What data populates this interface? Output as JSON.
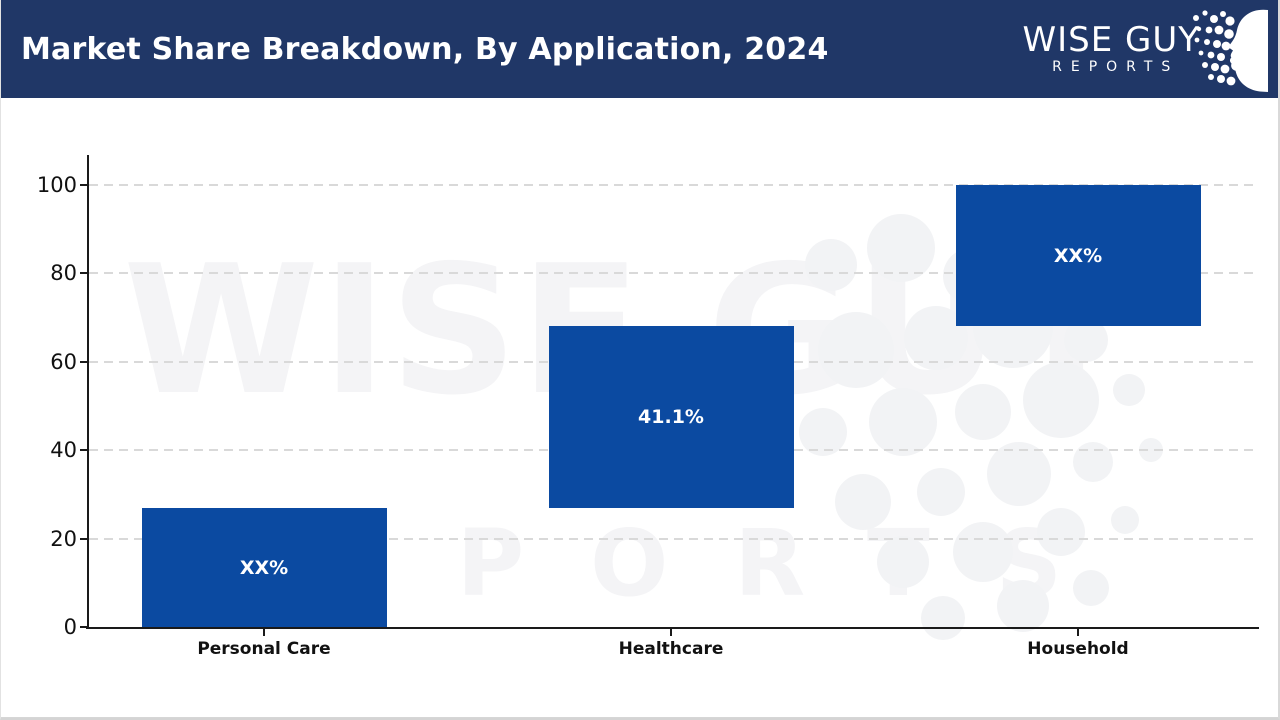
{
  "header": {
    "title": "Market Share Breakdown, By Application, 2024",
    "logo": {
      "line1": "WISE GUY",
      "line2": "REPORTS"
    }
  },
  "watermark": {
    "line1": "WISE GUY",
    "line2": "REPORTS"
  },
  "chart_data": {
    "type": "bar",
    "subtype": "floating-segment-bars (waterfall-style market share breakdown)",
    "title": "Market Share Breakdown, By Application, 2024",
    "categories": [
      "Personal Care",
      "Healthcare",
      "Household"
    ],
    "bars": [
      {
        "category": "Personal Care",
        "from": 0,
        "to": 26.9,
        "value": 26.9,
        "label": "XX%"
      },
      {
        "category": "Healthcare",
        "from": 26.9,
        "to": 68.0,
        "value": 41.1,
        "label": "41.1%"
      },
      {
        "category": "Household",
        "from": 68.0,
        "to": 100,
        "value": 32.0,
        "label": "XX%"
      }
    ],
    "yticks": [
      0,
      20,
      40,
      60,
      80,
      100
    ],
    "ylim": [
      0,
      107
    ],
    "xlabel": "",
    "ylabel": "",
    "grid": "horizontal-dashed",
    "legend": "none",
    "colors": {
      "bar": "#0b4aa1",
      "bar_label": "#ffffff",
      "grid": "#d9d9d9",
      "axis": "#1a1a1a",
      "header_bg": "#203767",
      "header_text": "#ffffff",
      "watermark": "#f4f4f6"
    }
  }
}
